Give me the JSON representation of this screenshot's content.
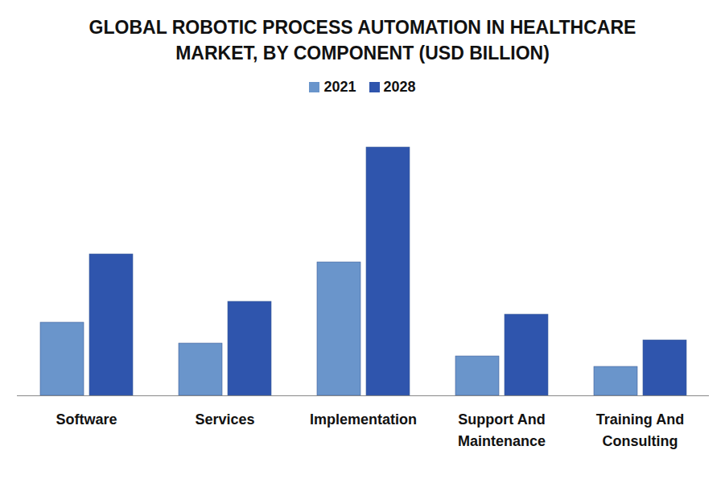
{
  "chart_data": {
    "type": "bar",
    "title": "GLOBAL ROBOTIC PROCESS AUTOMATION IN HEALTHCARE MARKET, BY COMPONENT (USD BILLION)",
    "categories": [
      "Software",
      "Services",
      "Implementation",
      "Support And Maintenance",
      "Training And Consulting"
    ],
    "series": [
      {
        "name": "2021",
        "color": "#6a95cb",
        "values": [
          0.91,
          0.65,
          1.66,
          0.49,
          0.36
        ]
      },
      {
        "name": "2028",
        "color": "#2f55ad",
        "values": [
          1.76,
          1.17,
          3.09,
          1.01,
          0.69
        ]
      }
    ],
    "ylim": [
      0,
      3.42
    ],
    "yticks": [],
    "grid": false,
    "legend": "top",
    "tick_labels": "x"
  }
}
